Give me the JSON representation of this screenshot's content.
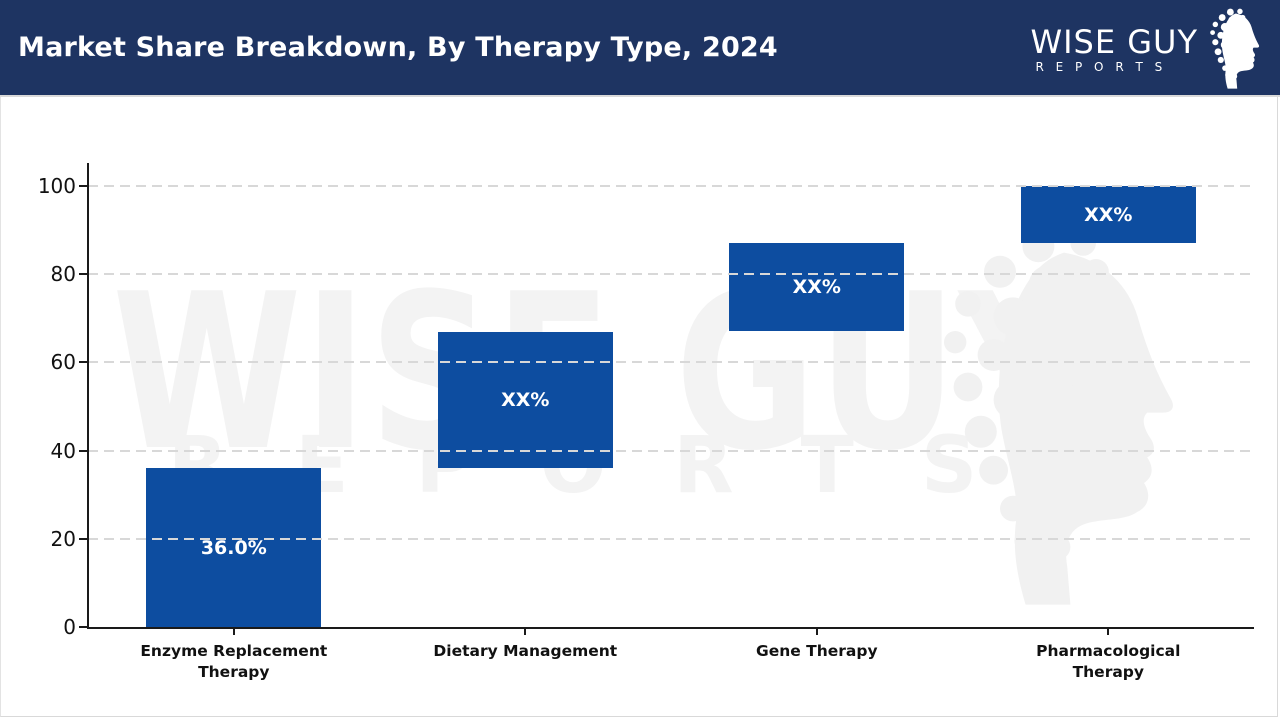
{
  "header": {
    "title": "Market Share Breakdown, By Therapy Type, 2024",
    "logo": {
      "wordmark": "WISE GUY",
      "subtext": "R E P O R T S"
    }
  },
  "watermark": {
    "wordmark": "WISE GUY",
    "subtext": "R E P O R T S"
  },
  "colors": {
    "header_bg": "#1e3462",
    "bar": "#0d4da0",
    "grid": "#d8d8d8",
    "axis": "#1a1a1a",
    "bar_label": "#ffffff",
    "tick_text": "#111111",
    "watermark": "#f3f3f3"
  },
  "chart_data": {
    "type": "bar",
    "variant": "waterfall",
    "title": "Market Share Breakdown, By Therapy Type, 2024",
    "categories": [
      "Enzyme Replacement Therapy",
      "Dietary Management",
      "Gene Therapy",
      "Pharmacological Therapy"
    ],
    "segments": [
      {
        "category": "Enzyme Replacement Therapy",
        "start": 0,
        "end": 36,
        "label": "36.0%"
      },
      {
        "category": "Dietary Management",
        "start": 36,
        "end": 67,
        "label": "XX%"
      },
      {
        "category": "Gene Therapy",
        "start": 67,
        "end": 87,
        "label": "XX%"
      },
      {
        "category": "Pharmacological Therapy",
        "start": 87,
        "end": 100,
        "label": "XX%"
      }
    ],
    "bar_labels": [
      "36.0%",
      "XX%",
      "XX%",
      "XX%"
    ],
    "yticks": [
      0,
      20,
      40,
      60,
      80,
      100
    ],
    "ylim": [
      0,
      105
    ],
    "xlabel": "",
    "ylabel": "",
    "grid": {
      "horizontal": true,
      "style": "dashed",
      "above_bars": true
    },
    "legend": null,
    "bar_color": "#0d4da0"
  }
}
